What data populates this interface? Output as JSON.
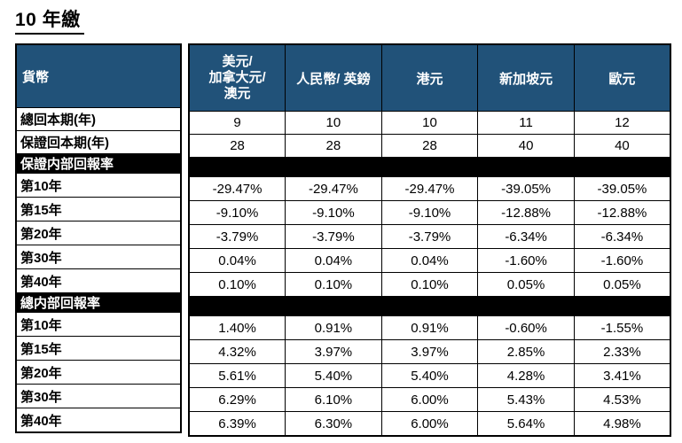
{
  "page": {
    "title": "10 年繳"
  },
  "colors": {
    "header_bg": "#215279",
    "header_text": "#ffffff",
    "section_bg": "#000000",
    "section_text": "#ffffff",
    "border": "#000000",
    "body_text": "#000000",
    "background": "#ffffff"
  },
  "table": {
    "currency_header": "貨幣",
    "columns": [
      "美元/\n加拿大元/\n澳元",
      "人民幣/ 英鎊",
      "港元",
      "新加坡元",
      "歐元"
    ],
    "payback_rows": [
      {
        "label": "總回本期(年)",
        "values": [
          "9",
          "10",
          "10",
          "11",
          "12"
        ]
      },
      {
        "label": "保證回本期(年)",
        "values": [
          "28",
          "28",
          "28",
          "40",
          "40"
        ]
      }
    ],
    "sections": [
      {
        "title": "保證内部回報率",
        "rows": [
          {
            "label": "第10年",
            "values": [
              "-29.47%",
              "-29.47%",
              "-29.47%",
              "-39.05%",
              "-39.05%"
            ]
          },
          {
            "label": "第15年",
            "values": [
              "-9.10%",
              "-9.10%",
              "-9.10%",
              "-12.88%",
              "-12.88%"
            ]
          },
          {
            "label": "第20年",
            "values": [
              "-3.79%",
              "-3.79%",
              "-3.79%",
              "-6.34%",
              "-6.34%"
            ]
          },
          {
            "label": "第30年",
            "values": [
              "0.04%",
              "0.04%",
              "0.04%",
              "-1.60%",
              "-1.60%"
            ]
          },
          {
            "label": "第40年",
            "values": [
              "0.10%",
              "0.10%",
              "0.10%",
              "0.05%",
              "0.05%"
            ]
          }
        ]
      },
      {
        "title": "總内部回報率",
        "rows": [
          {
            "label": "第10年",
            "values": [
              "1.40%",
              "0.91%",
              "0.91%",
              "-0.60%",
              "-1.55%"
            ]
          },
          {
            "label": "第15年",
            "values": [
              "4.32%",
              "3.97%",
              "3.97%",
              "2.85%",
              "2.33%"
            ]
          },
          {
            "label": "第20年",
            "values": [
              "5.61%",
              "5.40%",
              "5.40%",
              "4.28%",
              "3.41%"
            ]
          },
          {
            "label": "第30年",
            "values": [
              "6.29%",
              "6.10%",
              "6.00%",
              "5.43%",
              "4.53%"
            ]
          },
          {
            "label": "第40年",
            "values": [
              "6.39%",
              "6.30%",
              "6.00%",
              "5.64%",
              "4.98%"
            ]
          }
        ]
      }
    ]
  }
}
